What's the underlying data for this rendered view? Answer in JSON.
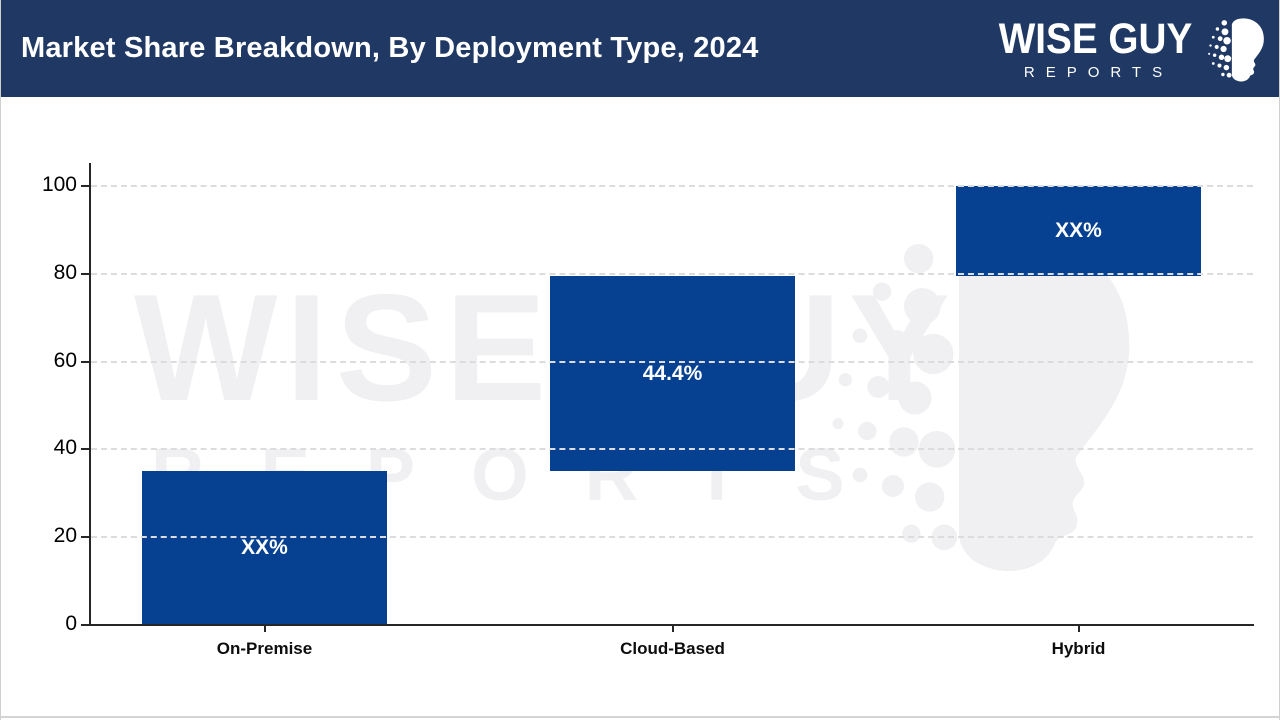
{
  "header": {
    "title": "Market Share Breakdown, By Deployment Type, 2024",
    "brand": {
      "name": "WISE GUY",
      "sub": "REPORTS"
    }
  },
  "watermark": {
    "line1": "WISE GUY",
    "line2": "REPORTS"
  },
  "chart_data": {
    "type": "bar",
    "subtype": "stacked-waterfall",
    "title": "Market Share Breakdown, By Deployment Type, 2024",
    "categories": [
      "On-Premise",
      "Cloud-Based",
      "Hybrid"
    ],
    "bars": [
      {
        "category": "On-Premise",
        "label": "XX%",
        "start": 0,
        "end": 35
      },
      {
        "category": "Cloud-Based",
        "label": "44.4%",
        "start": 35,
        "end": 79.4
      },
      {
        "category": "Hybrid",
        "label": "XX%",
        "start": 79.4,
        "end": 100
      }
    ],
    "xlabel": "",
    "ylabel": "",
    "ylim": [
      0,
      100
    ],
    "yticks": [
      0,
      20,
      40,
      60,
      80,
      100
    ],
    "legend": null,
    "grid": "horizontal-dashed",
    "colors": {
      "bar": "#064191",
      "grid": "#dcdcdc",
      "axis": "#262626",
      "header_bg": "#203864",
      "bar_label": "#ffffff",
      "watermark": "#f0f0f3"
    }
  }
}
